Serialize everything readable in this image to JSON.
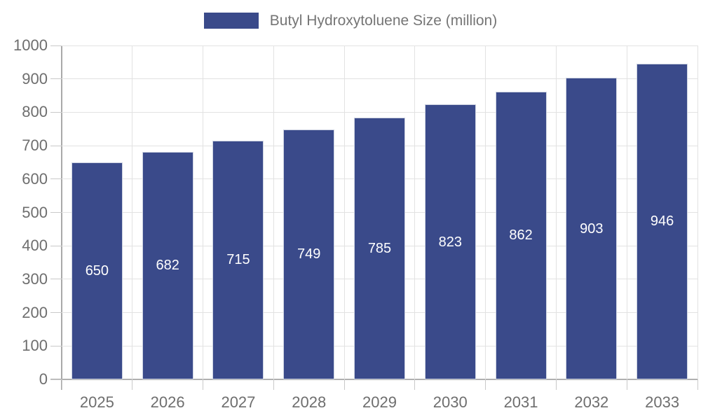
{
  "legend": {
    "label": "Butyl Hydroxytoluene Size (million)"
  },
  "colors": {
    "bar": "#3a4a8a",
    "grid": "#e2e2e2",
    "axis": "#b0b0b0",
    "tick": "#c9c9c9",
    "tick_label": "#6e6e6e",
    "value_label": "#ffffff",
    "legend_text": "#757575",
    "background": "#ffffff"
  },
  "chart_data": {
    "type": "bar",
    "title": "Butyl Hydroxytoluene Size (million)",
    "categories": [
      "2025",
      "2026",
      "2027",
      "2028",
      "2029",
      "2030",
      "2031",
      "2032",
      "2033"
    ],
    "values": [
      650,
      682,
      715,
      749,
      785,
      823,
      862,
      903,
      946
    ],
    "xlabel": "",
    "ylabel": "",
    "ylim": [
      0,
      1000
    ],
    "ytick_step": 100,
    "grid": true,
    "legend_position": "top",
    "value_labels": "inside-center"
  }
}
